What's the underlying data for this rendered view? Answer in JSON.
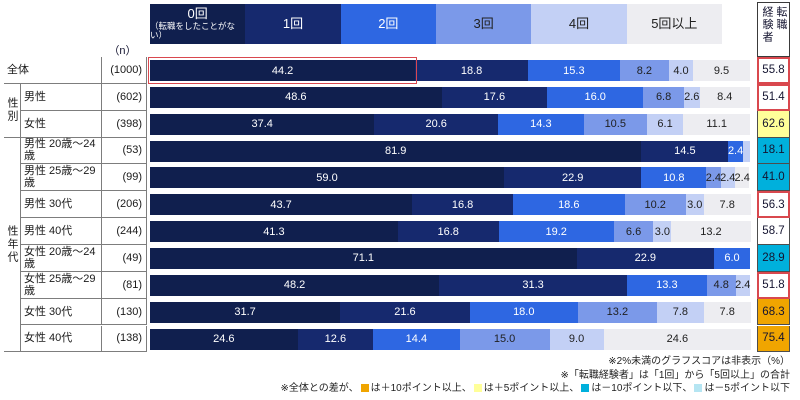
{
  "chart_data": {
    "type": "bar",
    "variant": "horizontal-stacked-100-percent",
    "unit": "%",
    "xlim": [
      0,
      100
    ],
    "n_header": "（n）",
    "total_header": "転職\n経験者",
    "legend": {
      "items": [
        {
          "label": "0回",
          "sublabel": "（転職をしたことがない）",
          "color": "#101f4e",
          "text_color": "#ffffff"
        },
        {
          "label": "1回",
          "color": "#16296e",
          "text_color": "#ffffff"
        },
        {
          "label": "2回",
          "color": "#2e67e2",
          "text_color": "#ffffff"
        },
        {
          "label": "3回",
          "color": "#7b99e9",
          "text_color": "#1f1f1f"
        },
        {
          "label": "4回",
          "color": "#c3d0f5",
          "text_color": "#1f1f1f"
        },
        {
          "label": "5回以上",
          "color": "#ededf1",
          "text_color": "#1f1f1f"
        }
      ]
    },
    "row_groups": [
      {
        "label": "性別",
        "start": 1,
        "end": 2
      },
      {
        "label": "性年代",
        "start": 3,
        "end": 10
      }
    ],
    "rows": [
      {
        "label": "全体",
        "n": "(1000)",
        "values": [
          44.2,
          18.8,
          15.3,
          8.2,
          4.0,
          9.5
        ],
        "total": 55.8,
        "total_bg": "",
        "total_red_box": true,
        "highlight_segment": 0
      },
      {
        "label": "男性",
        "n": "(602)",
        "values": [
          48.6,
          17.6,
          16.0,
          6.8,
          2.6,
          8.4
        ],
        "total": 51.4,
        "total_bg": "",
        "total_red_box": true
      },
      {
        "label": "女性",
        "n": "(398)",
        "values": [
          37.4,
          20.6,
          14.3,
          10.5,
          6.1,
          11.1
        ],
        "total": 62.6,
        "total_bg": "plus5",
        "total_red_box": false
      },
      {
        "label": "男性 20歳〜24歳",
        "n": "(53)",
        "values": [
          81.9,
          14.5,
          2.4,
          0,
          1.2,
          0
        ],
        "total": 18.1,
        "total_bg": "minus10",
        "total_red_box": false
      },
      {
        "label": "男性 25歳〜29歳",
        "n": "(99)",
        "values": [
          59.0,
          22.9,
          10.8,
          2.4,
          2.4,
          2.4
        ],
        "total": 41.0,
        "total_bg": "minus10",
        "total_red_box": false
      },
      {
        "label": "男性 30代",
        "n": "(206)",
        "values": [
          43.7,
          16.8,
          18.6,
          10.2,
          3.0,
          7.8
        ],
        "total": 56.3,
        "total_bg": "",
        "total_red_box": true
      },
      {
        "label": "男性 40代",
        "n": "(244)",
        "values": [
          41.3,
          16.8,
          19.2,
          6.6,
          3.0,
          13.2
        ],
        "total": 58.7,
        "total_bg": "",
        "total_red_box": false
      },
      {
        "label": "女性 20歳〜24歳",
        "n": "(49)",
        "values": [
          71.1,
          22.9,
          6.0,
          0,
          0,
          0
        ],
        "total": 28.9,
        "total_bg": "minus10",
        "total_red_box": false
      },
      {
        "label": "女性 25歳〜29歳",
        "n": "(81)",
        "values": [
          48.2,
          31.3,
          13.3,
          4.8,
          2.4,
          0
        ],
        "total": 51.8,
        "total_bg": "",
        "total_red_box": true
      },
      {
        "label": "女性 30代",
        "n": "(130)",
        "values": [
          31.7,
          21.6,
          18.0,
          13.2,
          7.8,
          7.8
        ],
        "total": 68.3,
        "total_bg": "plus10",
        "total_red_box": false
      },
      {
        "label": "女性 40代",
        "n": "(138)",
        "values": [
          24.6,
          12.6,
          14.4,
          15.0,
          9.0,
          24.6
        ],
        "total": 75.4,
        "total_bg": "plus10",
        "total_red_box": false
      }
    ],
    "flag_colors": {
      "plus10": "#f0a500",
      "plus5": "#ffff99",
      "minus10": "#00b0dc",
      "minus5": "#b5e5f2",
      "red_box": "#d9484e"
    }
  },
  "footnotes": [
    {
      "parts": [
        {
          "text": "※2%未満のグラフスコアは非表示（%）"
        }
      ]
    },
    {
      "parts": [
        {
          "text": "※「転職経験者」は「1回」から「5回以上」の合計"
        }
      ]
    },
    {
      "parts": [
        {
          "text": "※全体との差が、"
        },
        {
          "square": "#f0a500"
        },
        {
          "text": "は＋10ポイント以上、"
        },
        {
          "square": "#ffff99"
        },
        {
          "text": "は＋5ポイント以上、"
        },
        {
          "square": "#00b0dc"
        },
        {
          "text": "は－10ポイント以下、"
        },
        {
          "square": "#b5e5f2"
        },
        {
          "text": "は－5ポイント以下"
        }
      ]
    }
  ]
}
